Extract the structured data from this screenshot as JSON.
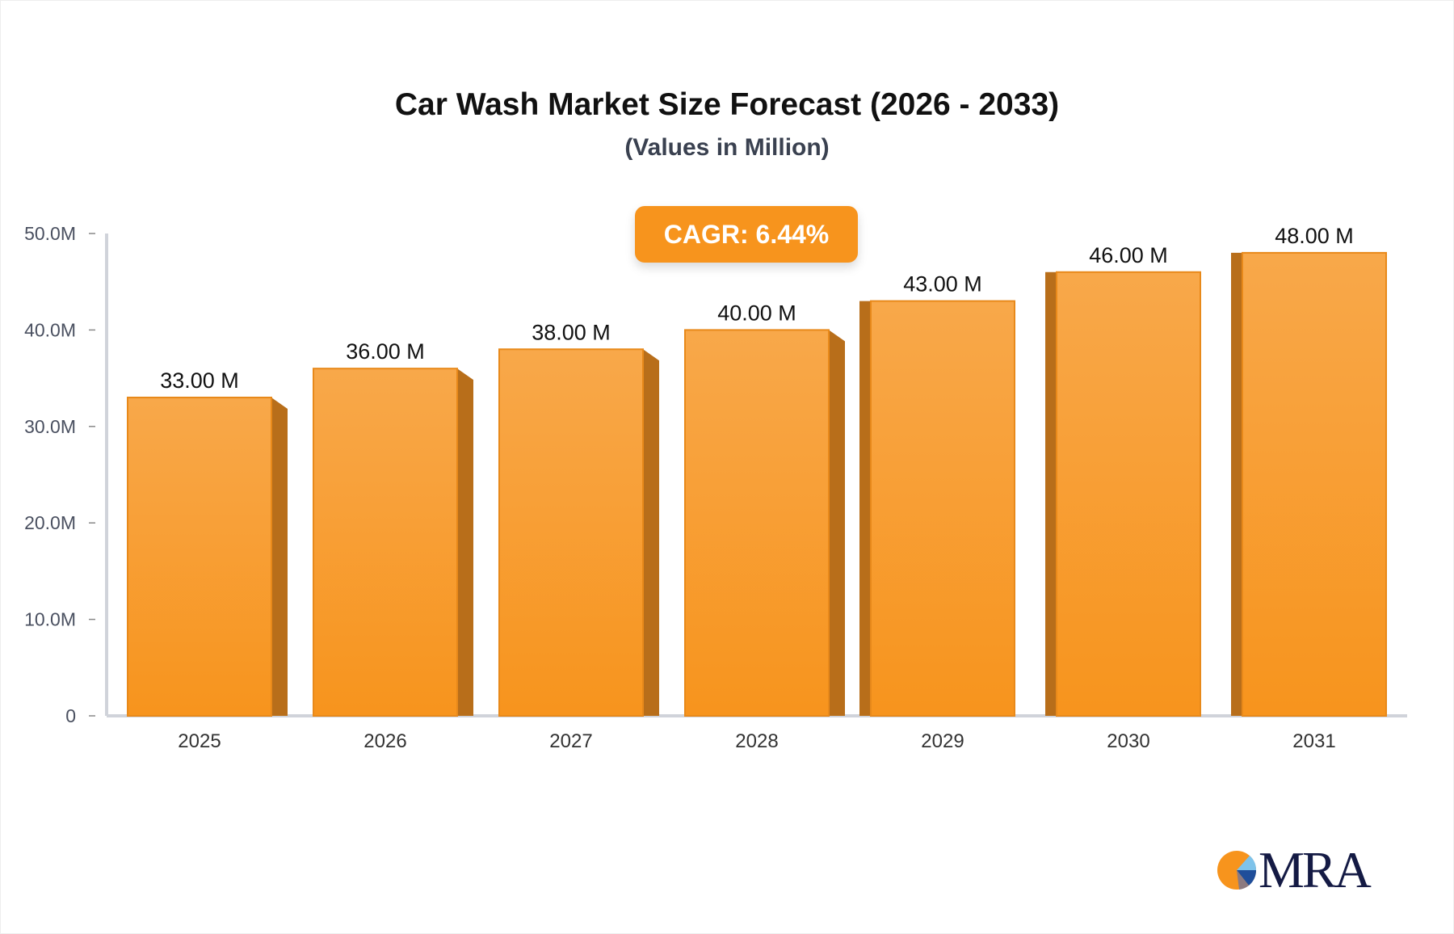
{
  "chart_data": {
    "type": "bar",
    "title": "Car Wash Market Size Forecast (2026 - 2033)",
    "subtitle": "(Values in Million)",
    "categories": [
      "2025",
      "2026",
      "2027",
      "2028",
      "2029",
      "2030",
      "2031"
    ],
    "values": [
      33,
      36,
      38,
      40,
      43,
      46,
      48
    ],
    "data_labels": [
      "33.00 M",
      "36.00 M",
      "38.00 M",
      "40.00 M",
      "43.00 M",
      "46.00 M",
      "48.00 M"
    ],
    "ylim": [
      0,
      50
    ],
    "yticks": [
      "0",
      "10.0M",
      "20.0M",
      "30.0M",
      "40.0M",
      "50.0M"
    ],
    "grid": false,
    "annotation": "CAGR: 6.44%",
    "colors": {
      "bar": "#F7941D",
      "bar_top": "#F8A84A",
      "bar_side": "#B86E1A",
      "axis": "#d0d3da",
      "cagr_bg": "#F7941D"
    }
  },
  "logo": {
    "text": "MRA"
  }
}
